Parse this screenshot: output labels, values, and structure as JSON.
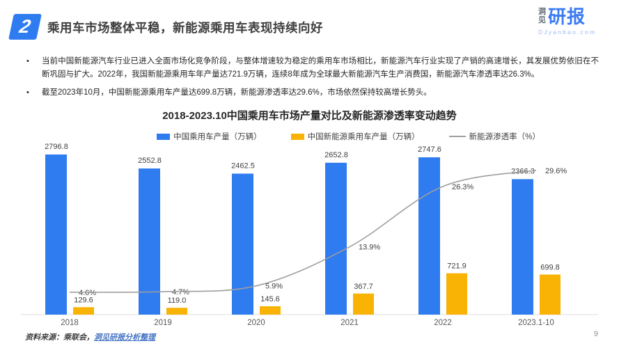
{
  "header": {
    "section_number": "2",
    "title": "乘用车市场整体平稳，新能源乘用车表现持续向好",
    "logo": {
      "stack_top": "洞",
      "stack_bottom": "见",
      "name": "研报",
      "domain": "DJyanbao.com"
    }
  },
  "bullets": [
    "当前中国新能源汽车行业已进入全面市场化竞争阶段，与整体增速较为稳定的乘用车市场相比，新能源汽车行业实现了产销的高速增长，其发展优势依旧在不断巩固与扩大。2022年，我国新能源乘用车年产量达721.9万辆，连续8年成为全球最大新能源汽车生产消费国，新能源汽车渗透率达26.3%。",
    "截至2023年10月，中国新能源乘用车产量达699.8万辆，新能源渗透率达29.6%，市场依然保持较高增长势头。"
  ],
  "chart_data": {
    "type": "bar",
    "title": "2018-2023.10中国乘用车市场产量对比及新能源渗透率变动趋势",
    "categories": [
      "2018",
      "2019",
      "2020",
      "2021",
      "2022",
      "2023.1-10"
    ],
    "series": [
      {
        "name": "中国乘用车产量（万辆）",
        "type": "bar",
        "color": "#2f7bf0",
        "values": [
          2796.8,
          2552.8,
          2462.5,
          2652.8,
          2747.6,
          2366.3
        ]
      },
      {
        "name": "中国新能源乘用车产量（万辆）",
        "type": "bar",
        "color": "#f8b305",
        "values": [
          129.6,
          119.0,
          145.6,
          367.7,
          721.9,
          699.8
        ]
      },
      {
        "name": "新能源渗透率（%）",
        "type": "line",
        "color": "#9e9e9e",
        "values": [
          4.6,
          4.7,
          5.9,
          13.9,
          26.3,
          29.6
        ]
      }
    ],
    "legend_position": "top",
    "grid": false,
    "ylim_bars": [
      0,
      2800
    ],
    "ylim_pct": [
      0,
      35
    ]
  },
  "footer": {
    "source_prefix": "资料来源：乘联会，",
    "source_link": "洞见研报分析整理",
    "page_number": "9"
  },
  "colors": {
    "accent_blue": "#2f7bf0",
    "accent_yellow": "#f8b305",
    "line_gray": "#9e9e9e",
    "baseline_gray": "#dddddd"
  }
}
